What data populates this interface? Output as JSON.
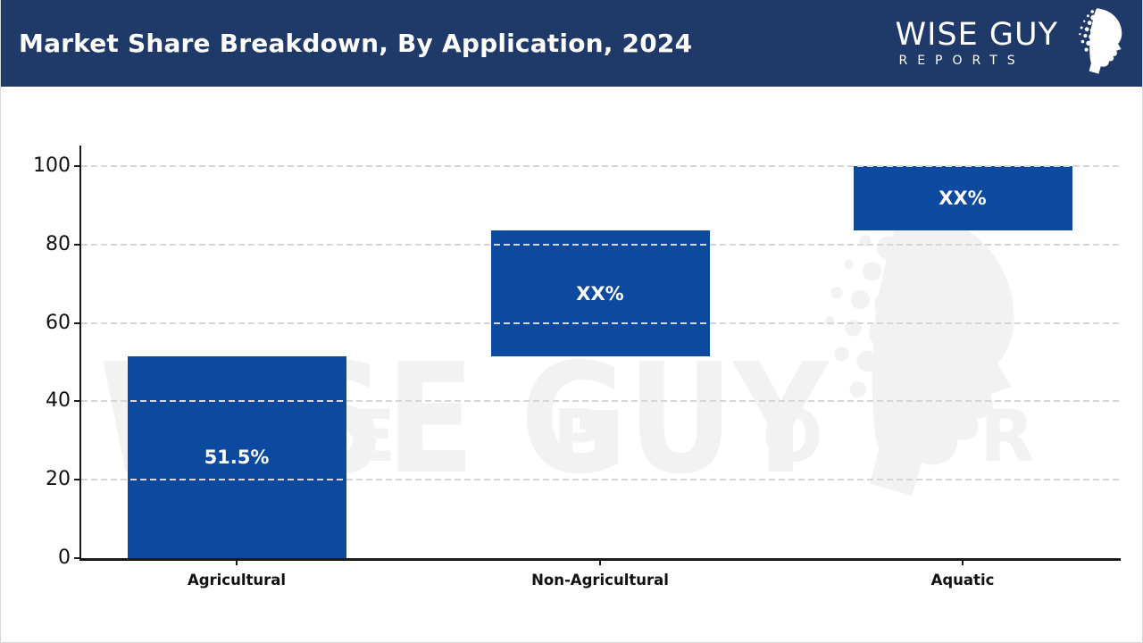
{
  "header": {
    "title": "Market Share Breakdown, By Application, 2024",
    "logo": {
      "line1": "WISE GUY",
      "line2": "REPORTS"
    }
  },
  "watermark": {
    "line1": "WISE GUY",
    "line2": "R E P O R T S"
  },
  "chart_data": {
    "type": "bar",
    "subtype": "floating-breakdown",
    "title": "Market Share Breakdown, By Application, 2024",
    "categories": [
      "Agricultural",
      "Non-Agricultural",
      "Aquatic"
    ],
    "segments": [
      {
        "category": "Agricultural",
        "start": 0,
        "end": 51.5,
        "label": "51.5%"
      },
      {
        "category": "Non-Agricultural",
        "start": 51.5,
        "end": 83.5,
        "label": "XX%"
      },
      {
        "category": "Aquatic",
        "start": 83.5,
        "end": 100,
        "label": "XX%"
      }
    ],
    "ylim": [
      0,
      100
    ],
    "yticks": [
      0,
      20,
      40,
      60,
      80,
      100
    ],
    "grid": "horizontal-dashed",
    "legend": "none"
  },
  "colors": {
    "header_bg": "#1f3a68",
    "bar": "#0b4a9f",
    "bar_label": "#ffffff",
    "axis": "#1a1a1a",
    "gridline": "#d7d7d7",
    "watermark": "#f2f2f2",
    "text": "#111111"
  }
}
